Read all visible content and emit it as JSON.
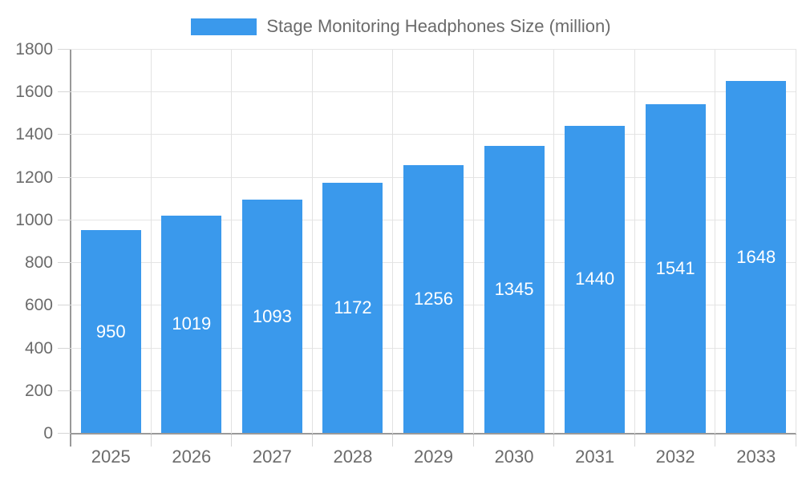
{
  "chart_data": {
    "type": "bar",
    "title": "Stage Monitoring Headphones Size (million)",
    "categories": [
      "2025",
      "2026",
      "2027",
      "2028",
      "2029",
      "2030",
      "2031",
      "2032",
      "2033"
    ],
    "values": [
      950,
      1019,
      1093,
      1172,
      1256,
      1345,
      1440,
      1541,
      1648
    ],
    "data_labels": [
      "950",
      "1019",
      "1093",
      "1172",
      "1256",
      "1345",
      "1440",
      "1541",
      "1648"
    ],
    "xlabel": "",
    "ylabel": "",
    "ylim": [
      0,
      1800
    ],
    "ytick_step": 200,
    "ytick_labels": [
      "0",
      "200",
      "400",
      "600",
      "800",
      "1000",
      "1200",
      "1400",
      "1600",
      "1800"
    ],
    "grid": true,
    "legend_position": "top",
    "colors": {
      "bar": "#3A99EC",
      "bar_value_text": "#FFFFFF",
      "axis_text": "#6B6B6B",
      "gridline": "#E5E5E5",
      "axis_line": "#999999",
      "background": "#FFFFFF"
    }
  }
}
